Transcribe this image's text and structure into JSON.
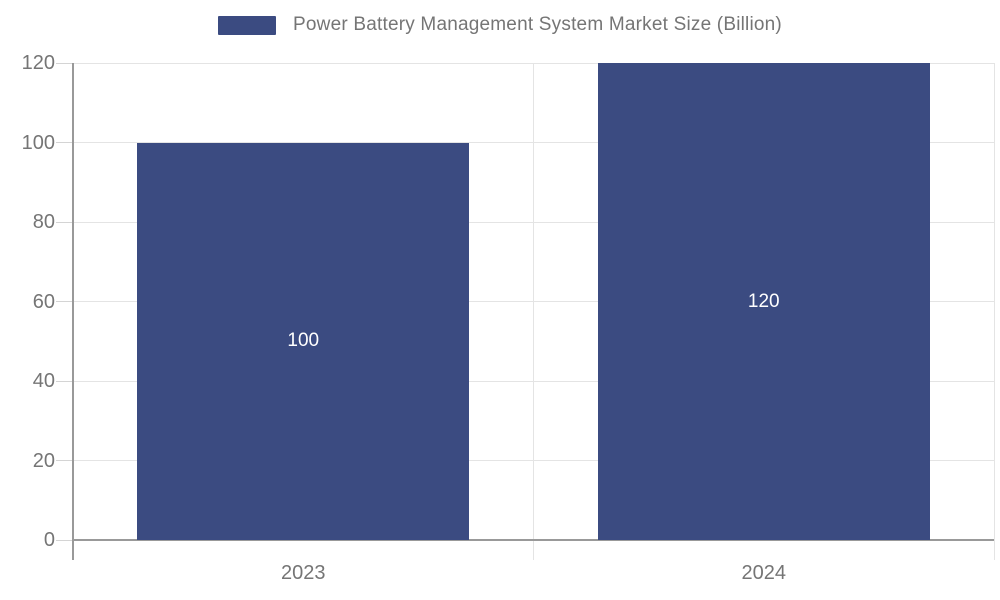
{
  "legend": {
    "label": "Power Battery Management System Market Size (Billion)"
  },
  "chart_data": {
    "type": "bar",
    "categories": [
      "2023",
      "2024"
    ],
    "values": [
      100,
      120
    ],
    "series": [
      {
        "name": "Power Battery Management System Market Size (Billion)",
        "values": [
          100,
          120
        ]
      }
    ],
    "value_labels": [
      "100",
      "120"
    ],
    "title": "Power Battery Management System Market Size (Billion)",
    "xlabel": "",
    "ylabel": "",
    "ylim": [
      0,
      120
    ],
    "yticks": [
      0,
      20,
      40,
      60,
      80,
      100,
      120
    ],
    "ytick_labels": [
      "0",
      "20",
      "40",
      "60",
      "80",
      "100",
      "120"
    ],
    "grid": true,
    "legend_position": "top-center",
    "value_label_position": "inside-middle"
  },
  "colors": {
    "bar": "#3B4B81",
    "axis_line": "#999999",
    "gridline": "#e4e4e4",
    "tick_mark": "#d4d4d4",
    "text": "#757575",
    "value_label": "#ffffff",
    "background": "#ffffff"
  }
}
